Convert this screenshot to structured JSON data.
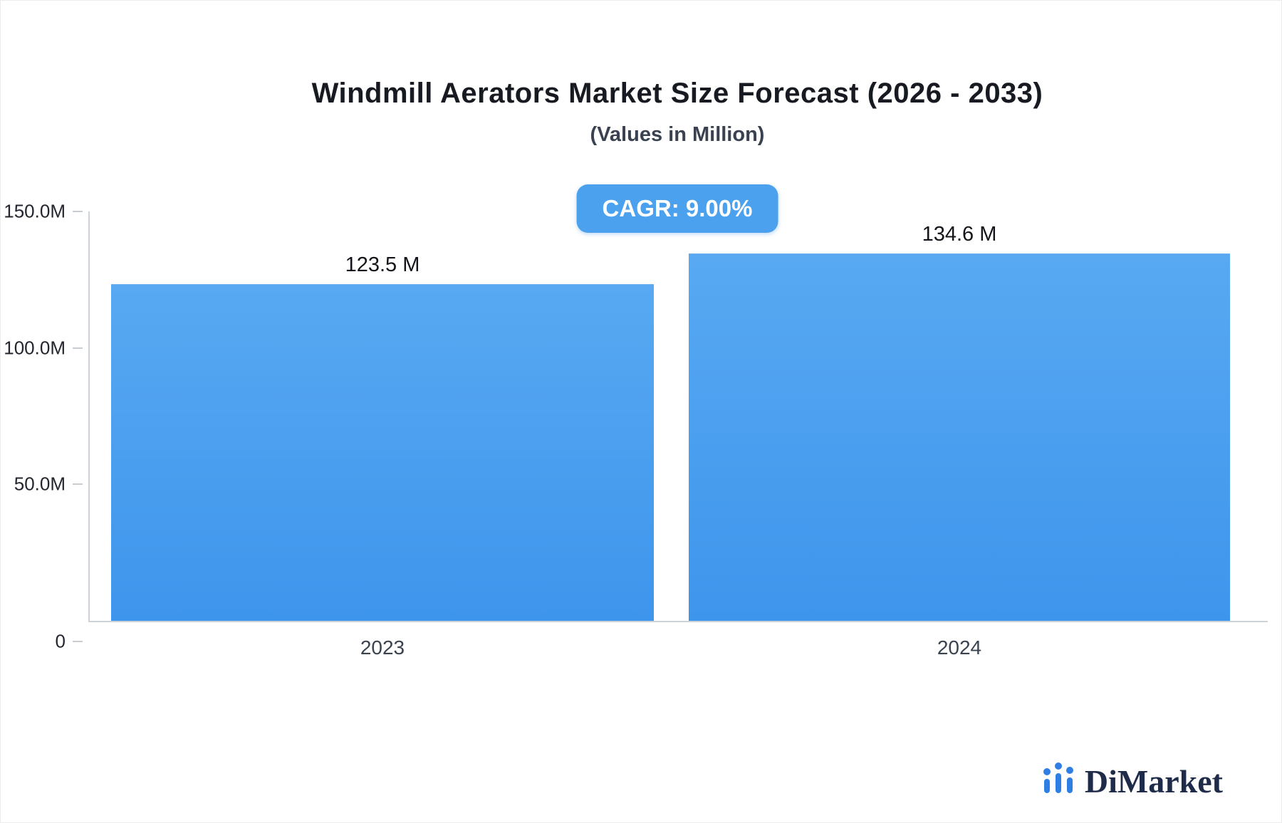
{
  "chart_data": {
    "type": "bar",
    "title": "Windmill Aerators Market Size Forecast (2026 - 2033)",
    "subtitle": "(Values in Million)",
    "categories": [
      "2023",
      "2024"
    ],
    "values": [
      123.5,
      134.6
    ],
    "value_labels": [
      "123.5 M",
      "134.6 M"
    ],
    "ylim": [
      0,
      150
    ],
    "yticks": [
      {
        "value": 150,
        "label": "150.0M"
      },
      {
        "value": 100,
        "label": "100.0M"
      },
      {
        "value": 50,
        "label": "50.0M"
      },
      {
        "value": 0,
        "label": "0"
      }
    ],
    "grid": false,
    "legend": "none",
    "bar_color_top": "#58a9f2",
    "bar_color_bottom": "#3e95ec"
  },
  "badge": {
    "text": "CAGR: 9.00%",
    "color": "#4ba1ee"
  },
  "logo": {
    "text": "DiMarket",
    "icon": "bar-chart-icon",
    "icon_color": "#2e7ee4",
    "text_color": "#1e2b49"
  }
}
